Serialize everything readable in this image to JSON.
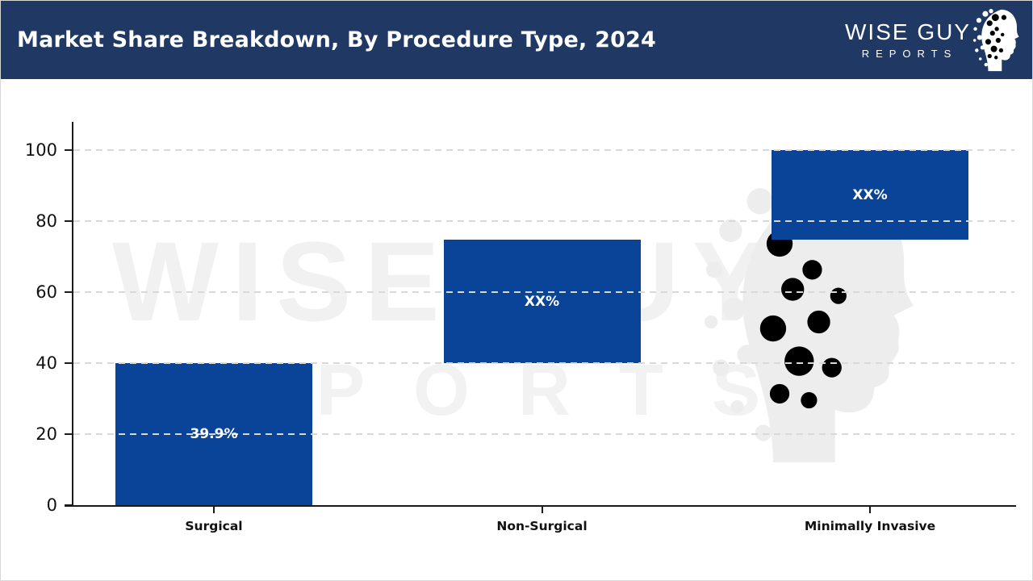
{
  "header": {
    "title": "Market Share Breakdown, By Procedure Type, 2024",
    "bg_color": "#203864",
    "logo": {
      "wordmark": "WISE GUY",
      "subtext": "REPORTS"
    }
  },
  "watermark": {
    "wordmark": "WISE GUY",
    "subtext": "REPORTS"
  },
  "chart_data": {
    "type": "bar",
    "subtype": "waterfall",
    "title": "Market Share Breakdown, By Procedure Type, 2024",
    "categories": [
      "Surgical",
      "Non-Surgical",
      "Minimally Invasive"
    ],
    "bars": [
      {
        "category": "Surgical",
        "start": 0,
        "end": 39.9,
        "label": "39.9%"
      },
      {
        "category": "Non-Surgical",
        "start": 39.9,
        "end": 74.7,
        "label": "XX%"
      },
      {
        "category": "Minimally Invasive",
        "start": 74.7,
        "end": 100,
        "label": "XX%"
      }
    ],
    "xlabel": "",
    "ylabel": "",
    "ylim": [
      0,
      100
    ],
    "yticks": [
      0,
      20,
      40,
      60,
      80,
      100
    ],
    "grid": "horizontal-dashed",
    "legend": "none",
    "colors": {
      "bar": "#0a4499",
      "bar_label": "#ffffff",
      "grid": "#d9d9d9",
      "axis": "#1a1a1a",
      "tick_label": "#111111",
      "header_bg": "#203864",
      "watermark": "#f1f1f1"
    }
  }
}
